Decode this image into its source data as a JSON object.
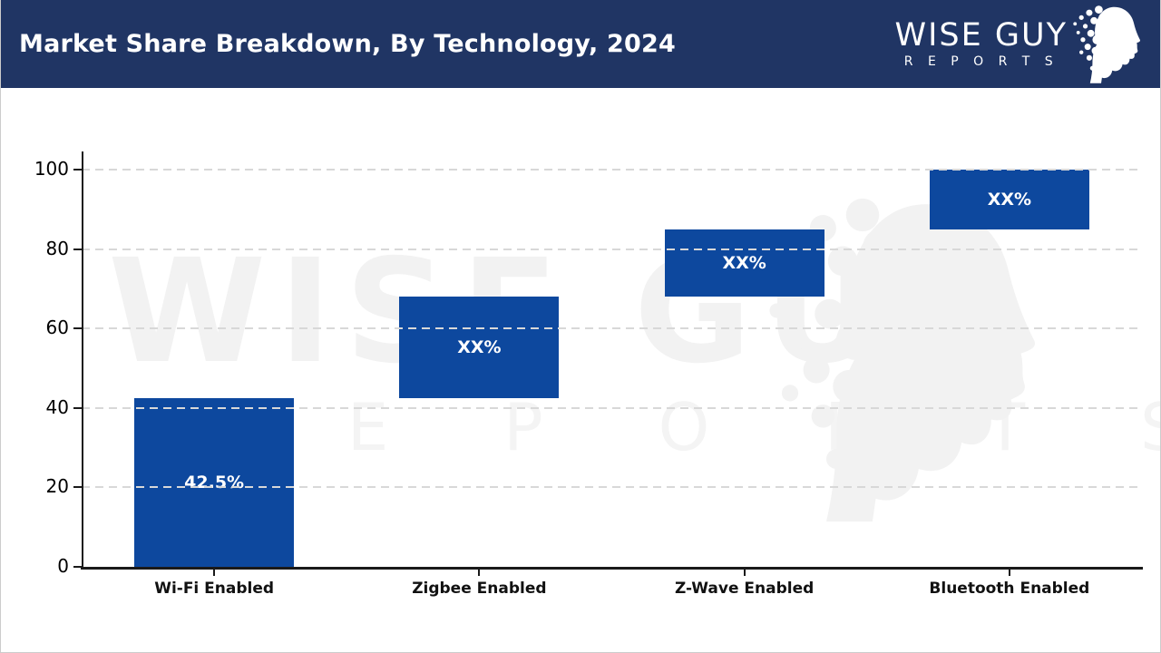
{
  "header": {
    "title": "Market Share Breakdown, By Technology, 2024",
    "bg_color": "#203564",
    "logo": {
      "line1": "WISE GUY",
      "line2": "R E P O R T S"
    }
  },
  "watermark": {
    "line1": "WISE GUY",
    "line2": "R E P O R T S"
  },
  "chart_data": {
    "type": "bar",
    "subtype": "waterfall",
    "title": "Market Share Breakdown, By Technology, 2024",
    "categories": [
      "Wi-Fi Enabled",
      "Zigbee Enabled",
      "Z-Wave Enabled",
      "Bluetooth Enabled"
    ],
    "segments": [
      {
        "category": "Wi-Fi Enabled",
        "start": 0,
        "end": 42.5,
        "label": "42.5%"
      },
      {
        "category": "Zigbee Enabled",
        "start": 42.5,
        "end": 68,
        "label": "XX%"
      },
      {
        "category": "Z-Wave Enabled",
        "start": 68,
        "end": 85,
        "label": "XX%"
      },
      {
        "category": "Bluetooth Enabled",
        "start": 85,
        "end": 100,
        "label": "XX%"
      }
    ],
    "y_ticks": [
      0,
      20,
      40,
      60,
      80,
      100
    ],
    "ylim": [
      0,
      100
    ],
    "xlabel": "",
    "ylabel": "",
    "grid": "dashed-horizontal",
    "legend": "none",
    "bar_color": "#0d489e",
    "bar_label_color": "#ffffff",
    "axis_color": "#1a1a1a",
    "grid_color": "#d8d8d8"
  }
}
